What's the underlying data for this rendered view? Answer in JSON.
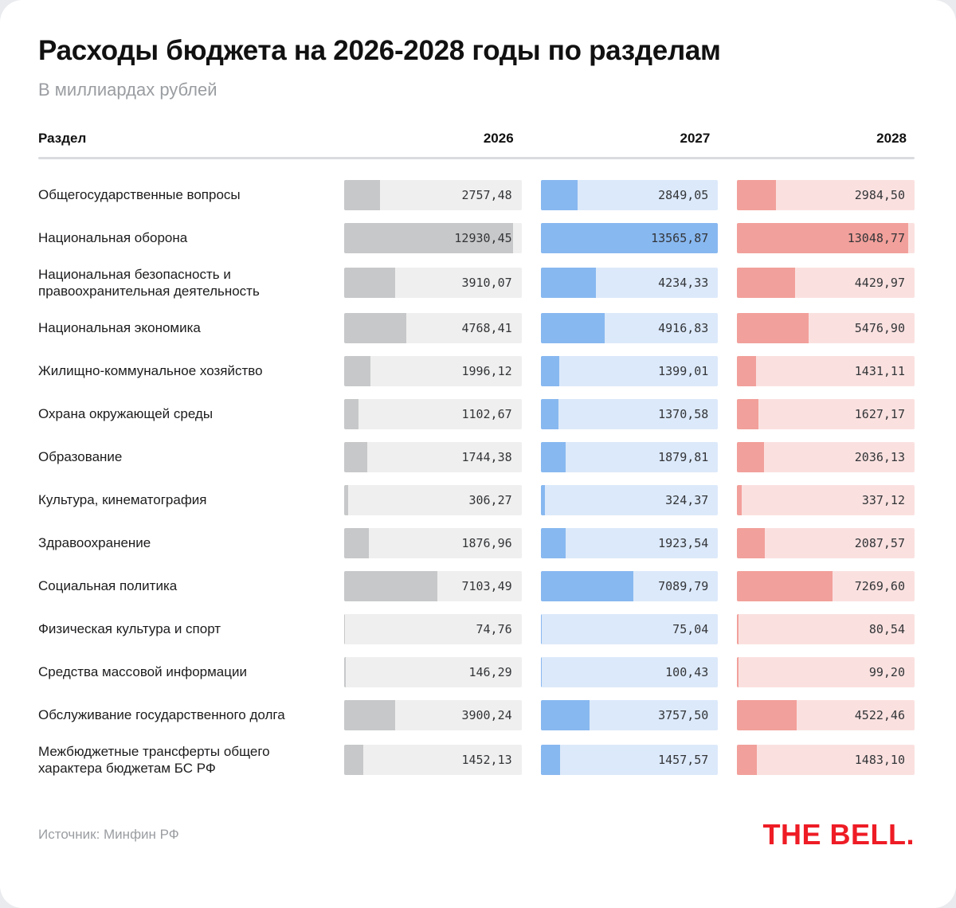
{
  "chart_data": {
    "type": "bar",
    "title": "Расходы бюджета на 2026-2028 годы по разделам",
    "subtitle": "В миллиардах рублей",
    "section_header": "Раздел",
    "categories": [
      "Общегосударственные вопросы",
      "Национальная оборона",
      "Национальная безопасность и правоохранительная деятельность",
      "Национальная экономика",
      "Жилищно-коммунальное хозяйство",
      "Охрана окружающей среды",
      "Образование",
      "Культура, кинематография",
      "Здравоохранение",
      "Социальная политика",
      "Физическая культура и спорт",
      "Средства массовой информации",
      "Обслуживание государственного долга",
      "Межбюджетные трансферты общего характера бюджетам БС РФ"
    ],
    "series": [
      {
        "name": "2026",
        "color": "#c7c8c9",
        "track": "#efefef",
        "values": [
          2757.48,
          12930.45,
          3910.07,
          4768.41,
          1996.12,
          1102.67,
          1744.38,
          306.27,
          1876.96,
          7103.49,
          74.76,
          146.29,
          3900.24,
          1452.13
        ]
      },
      {
        "name": "2027",
        "color": "#88b8f0",
        "track": "#dce9fa",
        "values": [
          2849.05,
          13565.87,
          4234.33,
          4916.83,
          1399.01,
          1370.58,
          1879.81,
          324.37,
          1923.54,
          7089.79,
          75.04,
          100.43,
          3757.5,
          1457.57
        ]
      },
      {
        "name": "2028",
        "color": "#f2a09b",
        "track": "#fae1e0",
        "values": [
          2984.5,
          13048.77,
          4429.97,
          5476.9,
          1431.11,
          1627.17,
          2036.13,
          337.12,
          2087.57,
          7269.6,
          80.54,
          99.2,
          4522.46,
          1483.1
        ]
      }
    ],
    "max_value": 13565.87,
    "xlabel": "",
    "ylabel": "",
    "grid": false,
    "legend_position": "header-row",
    "source": "Источник: Минфин РФ",
    "logo": "THE BELL."
  }
}
